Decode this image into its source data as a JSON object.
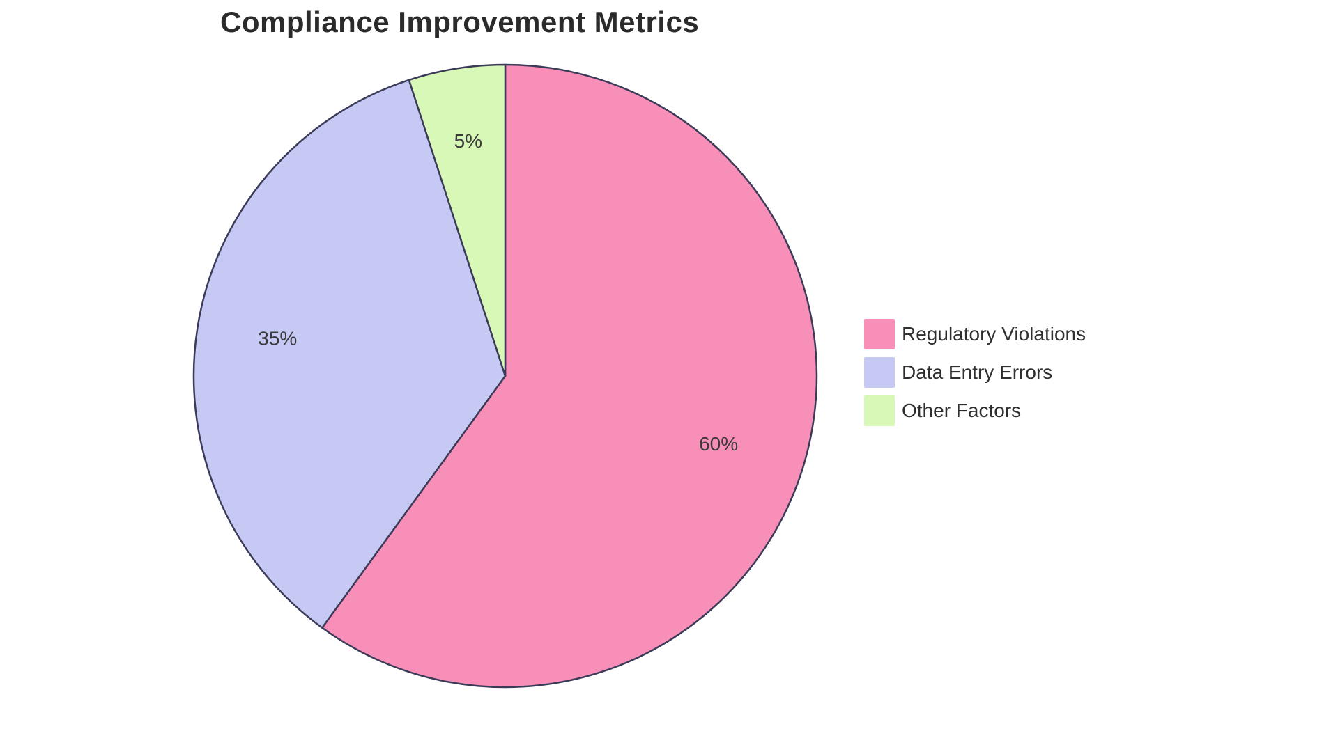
{
  "chart_data": {
    "type": "pie",
    "title": "Compliance Improvement Metrics",
    "start_angle_deg": -90,
    "direction": "clockwise",
    "stroke_color": "#3b3b58",
    "legend_position": "right",
    "slices": [
      {
        "label": "Regulatory Violations",
        "value": 60,
        "pct_label": "60%",
        "color": "#f78fb9"
      },
      {
        "label": "Data Entry Errors",
        "value": 35,
        "pct_label": "35%",
        "color": "#c6c9f4"
      },
      {
        "label": "Other Factors",
        "value": 5,
        "pct_label": "5%",
        "color": "#d8f8b8"
      }
    ]
  }
}
